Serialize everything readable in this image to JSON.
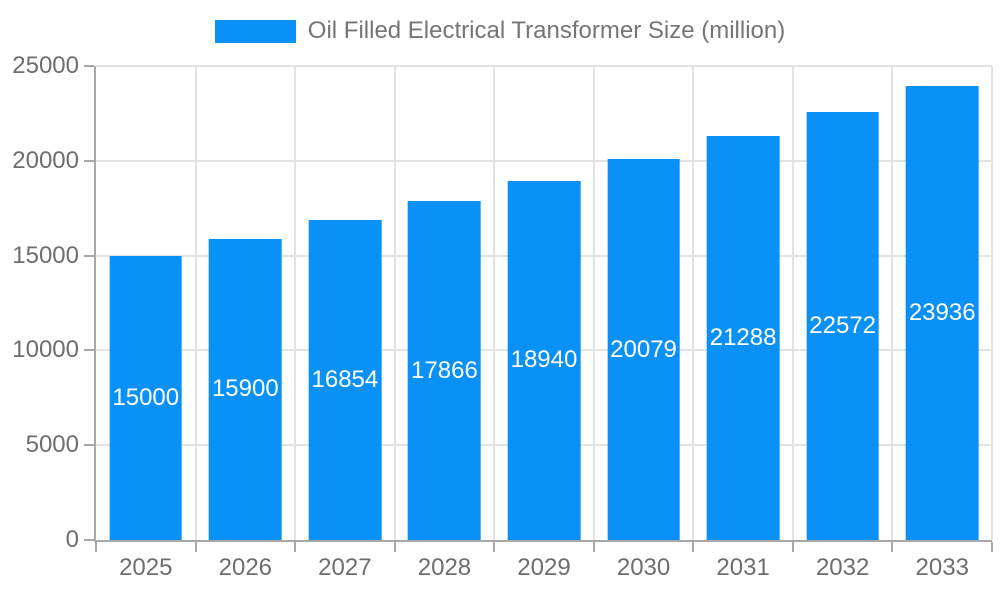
{
  "legend": {
    "label": "Oil Filled Electrical Transformer Size (million)"
  },
  "chart_data": {
    "type": "bar",
    "title": "Oil Filled Electrical Transformer Size (million)",
    "categories": [
      "2025",
      "2026",
      "2027",
      "2028",
      "2029",
      "2030",
      "2031",
      "2032",
      "2033"
    ],
    "series": [
      {
        "name": "Oil Filled Electrical Transformer Size (million)",
        "values": [
          15000,
          15900,
          16854,
          17866,
          18940,
          20079,
          21288,
          22572,
          23936
        ]
      }
    ],
    "value_labels": [
      "15000",
      "15900",
      "16854",
      "17866",
      "18940",
      "20079",
      "21288",
      "22572",
      "23936"
    ],
    "xlabel": "",
    "ylabel": "",
    "ylim": [
      0,
      25000
    ],
    "y_ticks": [
      0,
      5000,
      10000,
      15000,
      20000,
      25000
    ],
    "grid": true,
    "legend_position": "top-center",
    "colors": {
      "bar": "#0a91f8",
      "value_label": "#ffffff",
      "axis_line": "#a8a8a8",
      "tick_mark": "#a8a8a8",
      "grid_line": "#e3e3e3",
      "axis_label": "#6e6e6e",
      "legend_text": "#757575",
      "background": "#ffffff"
    }
  }
}
